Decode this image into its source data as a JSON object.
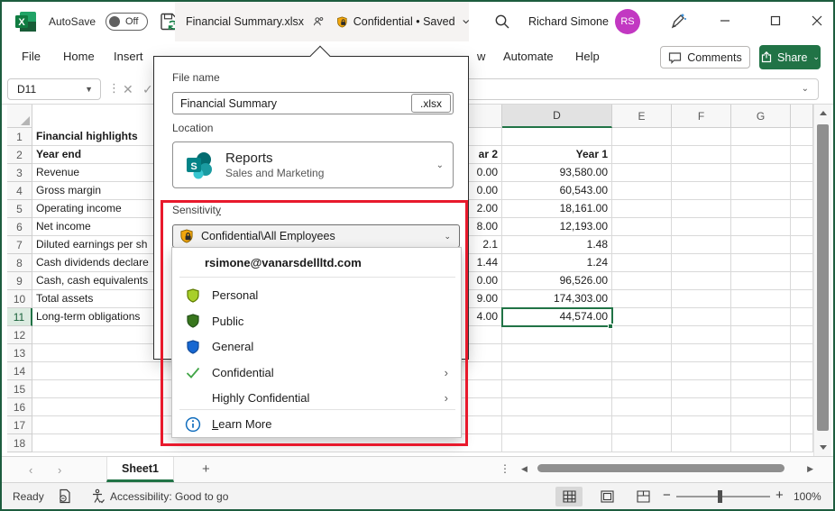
{
  "titlebar": {
    "autosave_label": "AutoSave",
    "autosave_state": "Off",
    "doc_title": "Financial Summary.xlsx",
    "doc_status": "Confidential  •  Saved",
    "user_name": "Richard Simone",
    "user_initials": "RS"
  },
  "menubar": {
    "left_items": [
      "File",
      "Home",
      "Insert"
    ],
    "view_partial": "w",
    "automate": "Automate",
    "help": "Help",
    "comments_label": "Comments",
    "share_label": "Share"
  },
  "formula_bar": {
    "name_box": "D11"
  },
  "panel": {
    "file_name_label": "File name",
    "file_name_value": "Financial Summary",
    "file_ext": ".xlsx",
    "location_label": "Location",
    "location_name": "Reports",
    "location_detail": "Sales and Marketing",
    "sensitivity_label_pre": "Sensitivit",
    "sensitivity_label_key": "y",
    "sensitivity_value": "Confidential\\All Employees",
    "menu": {
      "account": "rsimone@vanarsdellltd.com",
      "items": [
        {
          "label": "Personal",
          "icon": "shield",
          "fill": "#a8cf2a",
          "stroke": "#5c7a00",
          "submenu": false
        },
        {
          "label": "Public",
          "icon": "shield",
          "fill": "#38761d",
          "stroke": "#24511a",
          "submenu": false
        },
        {
          "label": "General",
          "icon": "shield",
          "fill": "#1667d2",
          "stroke": "#114a98",
          "submenu": false
        },
        {
          "label": "Confidential",
          "icon": "check",
          "fill": "#42a547",
          "stroke": "#42a547",
          "submenu": true
        },
        {
          "label": "Highly Confidential",
          "icon": "none",
          "fill": "",
          "stroke": "",
          "submenu": true
        }
      ],
      "learn_more_key": "L",
      "learn_more_rest": "earn More"
    }
  },
  "grid": {
    "visible_col_headers": [
      "D",
      "E",
      "F",
      "G"
    ],
    "selected_cell": "D11",
    "selected_column": "D",
    "selected_row": 11,
    "rows": [
      {
        "n": 1,
        "label": "Financial highlights",
        "bold": true,
        "c": "",
        "d": ""
      },
      {
        "n": 2,
        "label": "Year end",
        "bold": true,
        "c": "ar 2",
        "d": "Year 1"
      },
      {
        "n": 3,
        "label": "Revenue",
        "bold": false,
        "c": "0.00",
        "d": "93,580.00"
      },
      {
        "n": 4,
        "label": "Gross margin",
        "bold": false,
        "c": "0.00",
        "d": "60,543.00"
      },
      {
        "n": 5,
        "label": "Operating income",
        "bold": false,
        "c": "2.00",
        "d": "18,161.00"
      },
      {
        "n": 6,
        "label": "Net income",
        "bold": false,
        "c": "8.00",
        "d": "12,193.00"
      },
      {
        "n": 7,
        "label": "Diluted earnings per sh",
        "bold": false,
        "c": "2.1",
        "d": "1.48"
      },
      {
        "n": 8,
        "label": "Cash dividends declare",
        "bold": false,
        "c": "1.44",
        "d": "1.24"
      },
      {
        "n": 9,
        "label": "Cash, cash equivalents",
        "bold": false,
        "c": "0.00",
        "d": "96,526.00"
      },
      {
        "n": 10,
        "label": "Total assets",
        "bold": false,
        "c": "9.00",
        "d": "174,303.00"
      },
      {
        "n": 11,
        "label": "Long-term obligations",
        "bold": false,
        "c": "4.00",
        "d": "44,574.00",
        "selected": true
      },
      {
        "n": 12
      },
      {
        "n": 13
      },
      {
        "n": 14
      },
      {
        "n": 15
      },
      {
        "n": 16
      },
      {
        "n": 17
      },
      {
        "n": 18
      }
    ]
  },
  "sheetbar": {
    "sheet_name": "Sheet1"
  },
  "statusbar": {
    "ready_label": "Ready",
    "accessibility_label": "Accessibility: Good to go",
    "zoom_label": "100%"
  },
  "colors": {
    "excel_green": "#217346",
    "red_highlight": "#e8192c",
    "avatar_magenta": "#c238c2",
    "shield_orange": "#f2a60d"
  }
}
